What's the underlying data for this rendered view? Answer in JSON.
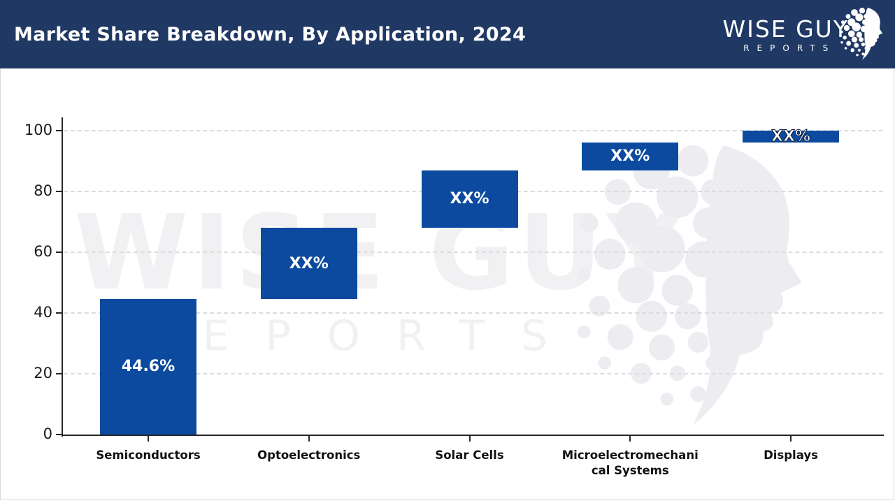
{
  "header": {
    "title": "Market Share Breakdown, By Application, 2024",
    "logo": {
      "line1": "WISE GUY",
      "line2": "REPORTS"
    }
  },
  "watermark": {
    "line1": "WISE GUY",
    "line2": "REPORTS"
  },
  "chart_data": {
    "type": "bar",
    "subtype": "waterfall",
    "title": "Market Share Breakdown, By Application, 2024",
    "unit": "percent market share",
    "categories": [
      "Semiconductors",
      "Optoelectronics",
      "Solar Cells",
      "Microelectromechanical Systems",
      "Displays"
    ],
    "segments": [
      {
        "category": "Semiconductors",
        "start": 0,
        "end": 44.6,
        "value": 44.6,
        "label": "44.6%"
      },
      {
        "category": "Optoelectronics",
        "start": 44.6,
        "end": 68,
        "value": 23.4,
        "label": "XX%"
      },
      {
        "category": "Solar Cells",
        "start": 68,
        "end": 87,
        "value": 19,
        "label": "XX%"
      },
      {
        "category": "Microelectromechanical Systems",
        "start": 87,
        "end": 96.2,
        "value": 9.2,
        "label": "XX%"
      },
      {
        "category": "Displays",
        "start": 96.2,
        "end": 100,
        "value": 3.8,
        "label": "XX%"
      }
    ],
    "yticks": [
      0,
      20,
      40,
      60,
      80,
      100
    ],
    "ylim": [
      0,
      100
    ],
    "xlabel": "",
    "ylabel": "",
    "grid": "horizontal-dashed",
    "legend": null,
    "bar_color": "#0b4a9e",
    "bar_label_color": "#ffffff"
  },
  "colors": {
    "header_bg": "#203864",
    "watermark": "#f1f1f4",
    "axis": "#262626",
    "gridline": "#dcdcdc"
  }
}
